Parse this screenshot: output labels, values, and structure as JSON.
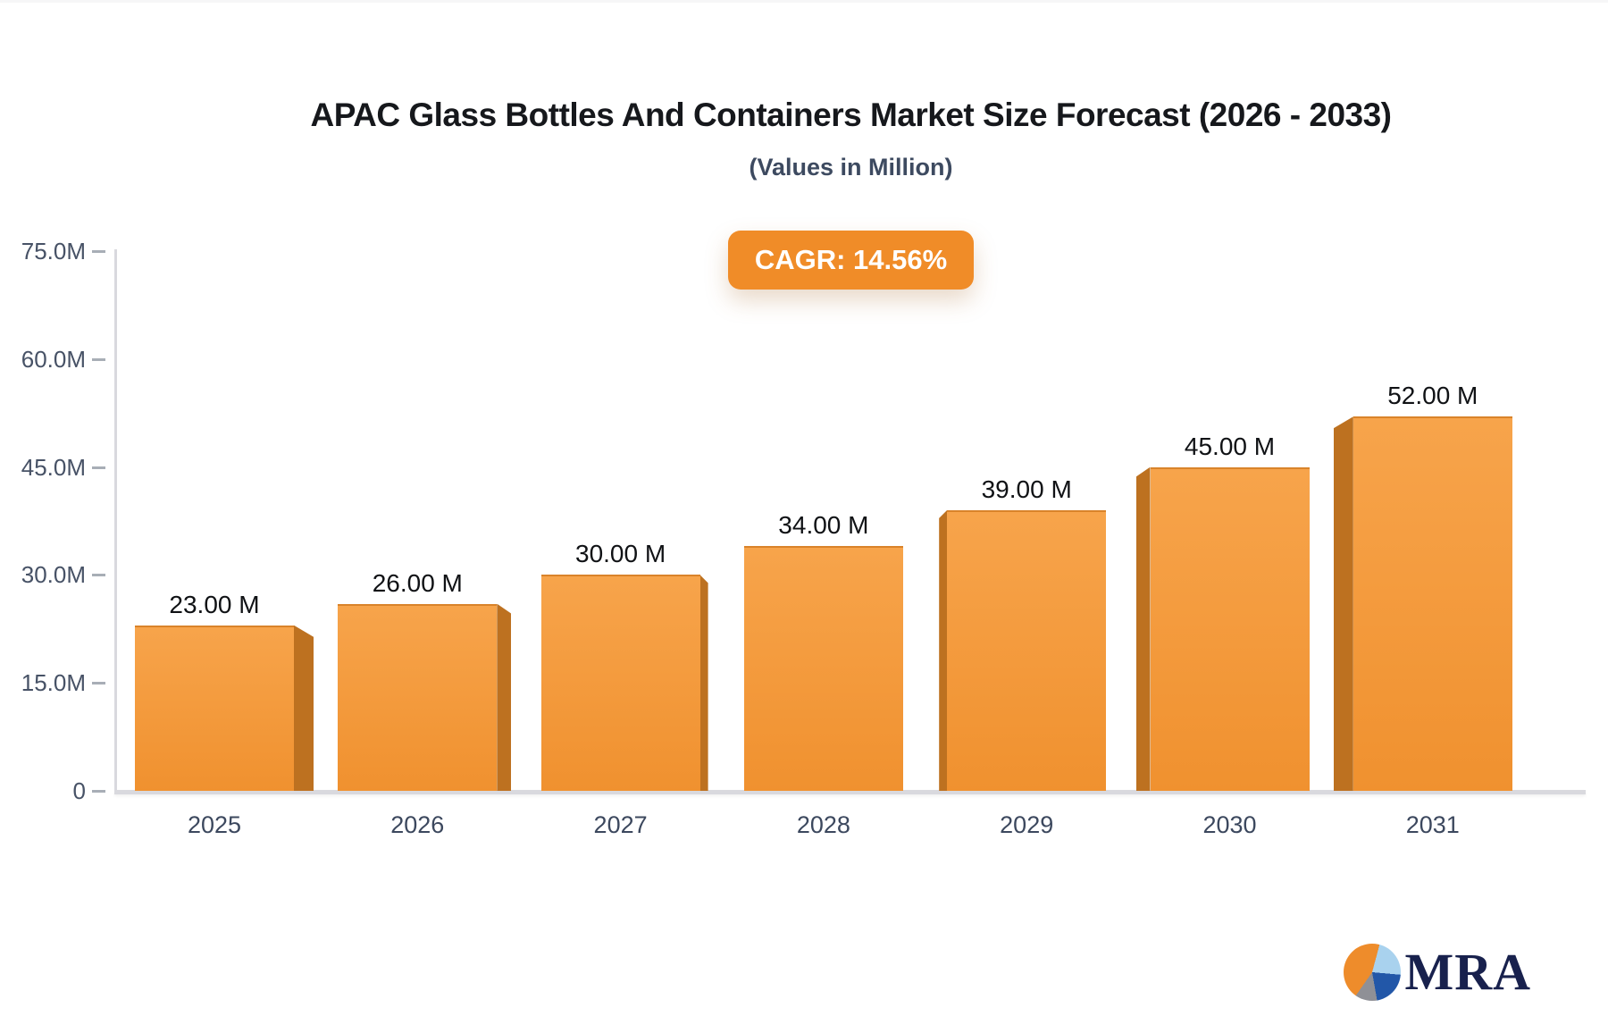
{
  "title": "APAC Glass Bottles And Containers Market Size Forecast (2026 - 2033)",
  "subtitle": "(Values in Million)",
  "badge": {
    "label": "CAGR: 14.56%"
  },
  "logo": {
    "text": "MRA"
  },
  "colors": {
    "accent": "#f08c28",
    "bar_top": "#f7a44b",
    "bar_bottom": "#f0912f",
    "bar_side": "#bd7120",
    "pie_orange": "#ee8c2b",
    "pie_lightblue": "#a9d2ee",
    "pie_blue": "#2257a8",
    "pie_gray": "#8f9096"
  },
  "chart_data": {
    "type": "bar",
    "categories": [
      "2025",
      "2026",
      "2027",
      "2028",
      "2029",
      "2030",
      "2031"
    ],
    "values": [
      23,
      26,
      30,
      34,
      39,
      45,
      52
    ],
    "value_labels": [
      "23.00 M",
      "26.00 M",
      "30.00 M",
      "34.00 M",
      "39.00 M",
      "45.00 M",
      "52.00 M"
    ],
    "title": "APAC Glass Bottles And Containers Market Size Forecast (2026 - 2033)",
    "subtitle": "(Values in Million)",
    "xlabel": "",
    "ylabel": "",
    "ylim": [
      0,
      75
    ],
    "y_tick_values": [
      75,
      60,
      45,
      30,
      15,
      0
    ],
    "y_tick_labels": [
      "75.0M",
      "60.0M",
      "45.0M",
      "30.0M",
      "15.0M",
      "0"
    ],
    "grid": false,
    "legend": "none",
    "bar_style": "3d-orange"
  }
}
